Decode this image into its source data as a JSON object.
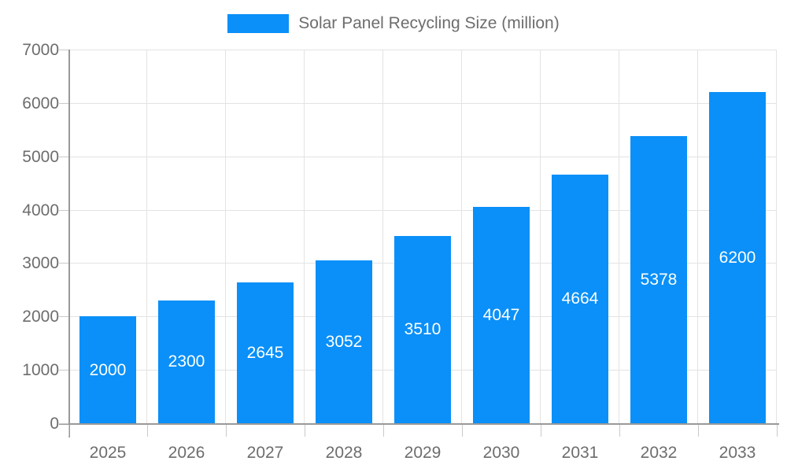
{
  "legend": {
    "label": "Solar Panel Recycling Size (million)"
  },
  "chart_data": {
    "type": "bar",
    "title": "",
    "xlabel": "",
    "ylabel": "",
    "categories": [
      "2025",
      "2026",
      "2027",
      "2028",
      "2029",
      "2030",
      "2031",
      "2032",
      "2033"
    ],
    "series": [
      {
        "name": "Solar Panel Recycling Size (million)",
        "values": [
          2000,
          2300,
          2645,
          3052,
          3510,
          4047,
          4664,
          5378,
          6200
        ]
      }
    ],
    "value_labels": [
      "2000",
      "2300",
      "2645",
      "3052",
      "3510",
      "4047",
      "4664",
      "5378",
      "6200"
    ],
    "ylim": [
      0,
      7000
    ],
    "ytick_step": 1000,
    "ytick_labels": [
      "0",
      "1000",
      "2000",
      "3000",
      "4000",
      "5000",
      "6000",
      "7000"
    ],
    "grid": true,
    "legend_position": "top"
  },
  "colors": {
    "bar": "#0a90f8",
    "value_label": "#ffffff",
    "axis_text": "#6d6d6d",
    "gridline": "#e3e3e3",
    "axis_line": "#999999",
    "background": "#ffffff"
  }
}
